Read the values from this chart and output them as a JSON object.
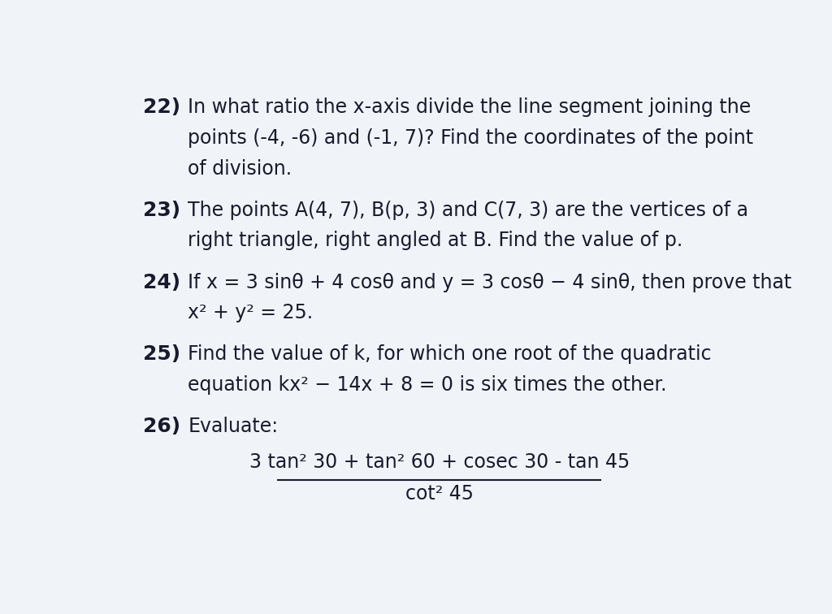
{
  "background_color": "#f0f4f8",
  "text_color": "#1a1a2e",
  "font_size_number": 18,
  "font_size_text": 17,
  "font_size_math": 17,
  "questions": [
    {
      "number": "22)",
      "lines": [
        "In what ratio the x-axis divide the line segment joining the",
        "points (-4, -6) and (-1, 7)? Find the coordinates of the point",
        "of division."
      ]
    },
    {
      "number": "23)",
      "lines": [
        "The points A(4, 7), B(p, 3) and C(7, 3) are the vertices of a",
        "right triangle, right angled at B. Find the value of p."
      ]
    },
    {
      "number": "24)",
      "lines": [
        "If x = 3 sinθ + 4 cosθ and y = 3 cosθ − 4 sinθ, then prove that",
        "x² + y² = 25."
      ]
    },
    {
      "number": "25)",
      "lines": [
        "Find the value of k, for which one root of the quadratic",
        "equation kx² − 14x + 8 = 0 is six times the other."
      ]
    },
    {
      "number": "26)",
      "lines": [
        "Evaluate:"
      ],
      "has_fraction": true,
      "numerator": "3 tan² 30 + tan² 60 + cosec 30 - tan 45",
      "denominator": "cot² 45"
    }
  ]
}
